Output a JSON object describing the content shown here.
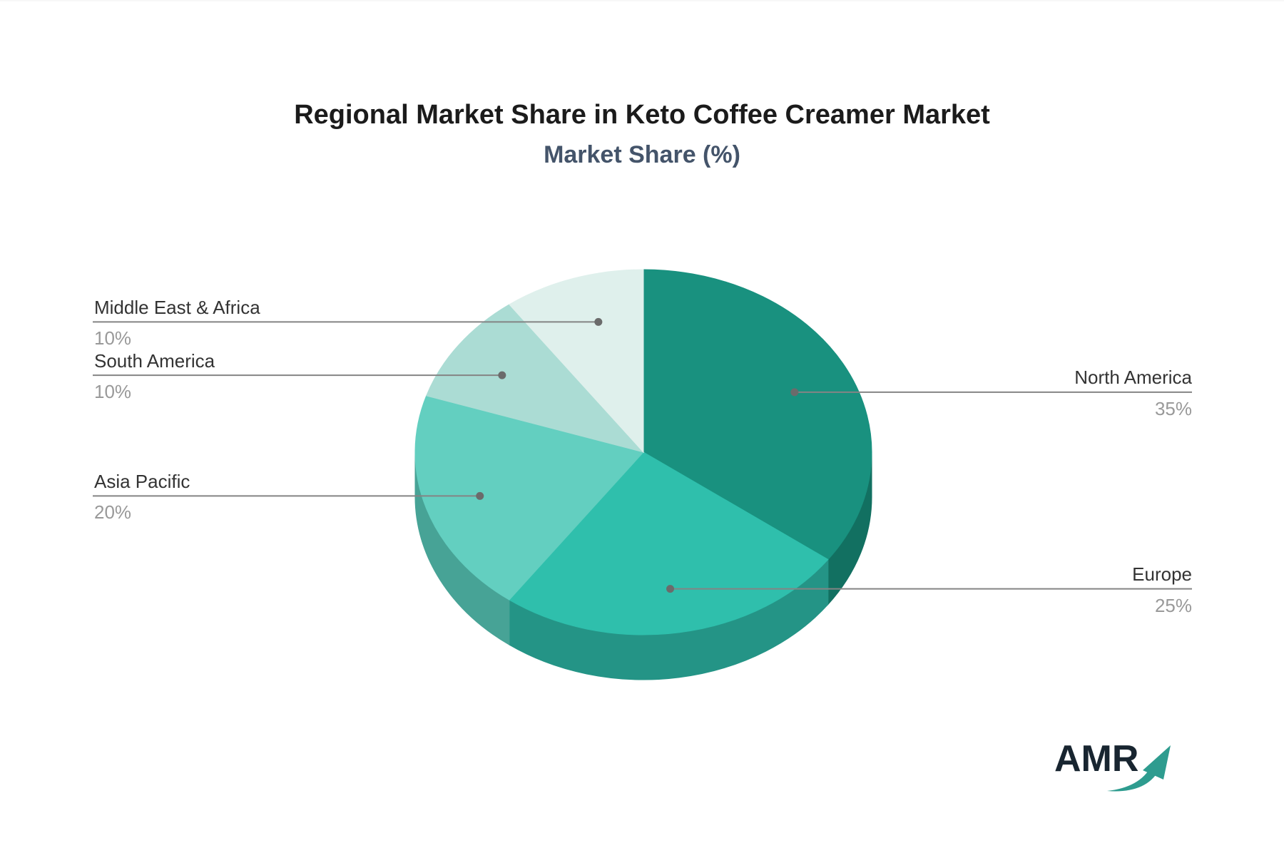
{
  "title": "Regional Market Share in Keto Coffee Creamer Market",
  "subtitle": "Market Share (%)",
  "chart_data": {
    "type": "pie",
    "title": "Regional Market Share in Keto Coffee Creamer Market",
    "subtitle": "Market Share (%)",
    "value_suffix": "%",
    "start_angle": 0,
    "direction": "clockwise",
    "legend": false,
    "slices": [
      {
        "label": "North America",
        "value": 35,
        "color": "#19917F",
        "side_color": "#127061"
      },
      {
        "label": "Europe",
        "value": 25,
        "color": "#2FBFAC",
        "side_color": "#249486"
      },
      {
        "label": "Asia Pacific",
        "value": 20,
        "color": "#63CFC0",
        "side_color": "#47A396"
      },
      {
        "label": "South America",
        "value": 10,
        "color": "#ABDCD4",
        "side_color": "#84B5AD"
      },
      {
        "label": "Middle East & Africa",
        "value": 10,
        "color": "#DFF0EC",
        "side_color": "#B4CFC9"
      }
    ],
    "labels_style": {
      "name_color": "#333333",
      "value_color": "#999999",
      "connector_color": "#848484"
    }
  },
  "logo": {
    "text": "AMR",
    "text_color": "#182530",
    "arrow_color": "#2E9C8F"
  }
}
